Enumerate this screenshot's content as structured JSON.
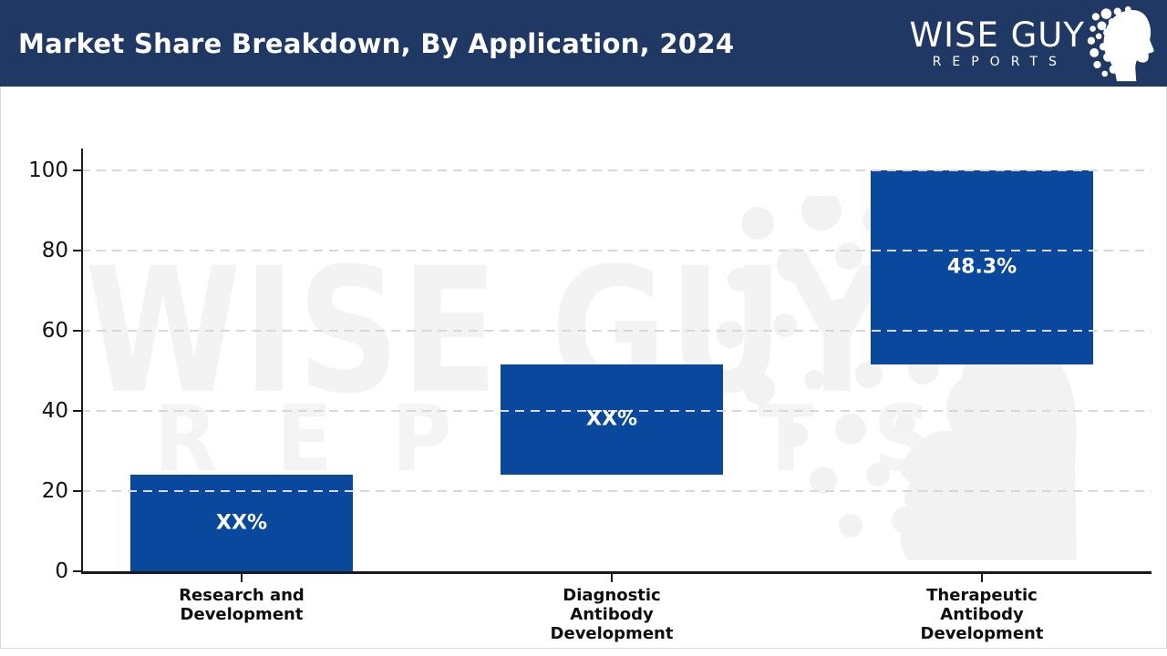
{
  "header": {
    "title": "Market Share Breakdown, By Application, 2024",
    "logo": {
      "line1": "WISE GUY",
      "line2": "REPORTS"
    }
  },
  "watermark": {
    "line1": "WISE GUY",
    "line2": "REPORTS"
  },
  "chart_data": {
    "type": "waterfall",
    "title": "Market Share Breakdown, By Application, 2024",
    "categories": [
      "Research and\nDevelopment",
      "Diagnostic\nAntibody\nDevelopment",
      "Therapeutic\nAntibody\nDevelopment"
    ],
    "values": [
      24.0,
      27.7,
      48.3
    ],
    "bar_labels": [
      "XX%",
      "XX%",
      "48.3%"
    ],
    "ylim": [
      0,
      100
    ],
    "yticks": [
      0,
      20,
      40,
      60,
      80,
      100
    ],
    "grid": "horizontal-dashed",
    "legend": "none",
    "bar_color": "#0a489e",
    "bar_label_color": "#ffffff",
    "axis_color": "#1a1a1a",
    "gridline_color": "#d8d8d8",
    "header_bg_color": "#203864",
    "watermark_color": "#f3f3f3"
  }
}
